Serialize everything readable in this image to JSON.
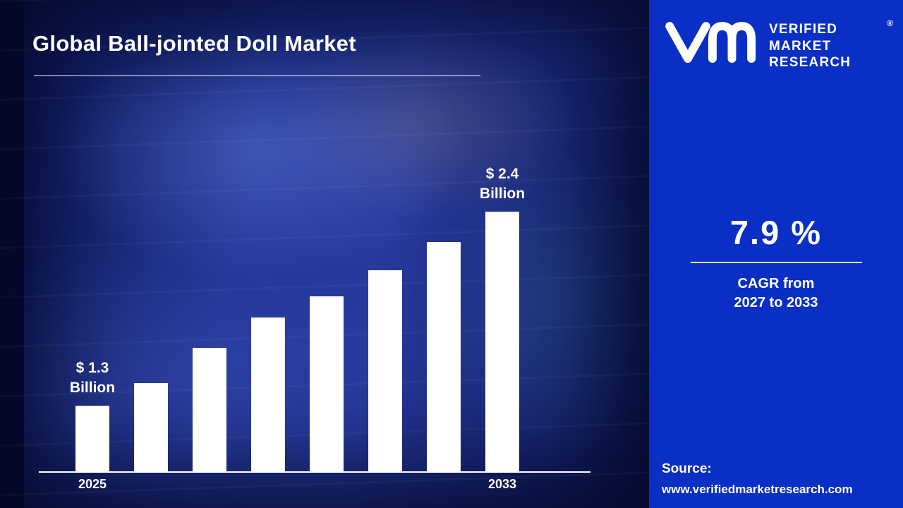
{
  "colors": {
    "panel_accent": "#0a2fc4",
    "background_navy": "#1b2a80",
    "bar_white": "#ffffff",
    "text_white": "#ffffff"
  },
  "header": {
    "title": "Global Ball-jointed Doll Market"
  },
  "chart_data": {
    "type": "bar",
    "title": "Global Ball-jointed Doll Market",
    "xlabel": "",
    "ylabel": "",
    "unit": "USD Billion",
    "categories": [
      "2025",
      "",
      "",
      "",
      "",
      "",
      "",
      "2033"
    ],
    "values": [
      1.3,
      1.43,
      1.63,
      1.8,
      1.92,
      2.07,
      2.23,
      2.4
    ],
    "annotations": [
      {
        "index": 0,
        "lines": [
          "$ 1.3",
          "Billion"
        ]
      },
      {
        "index": 7,
        "lines": [
          "$ 2.4",
          "Billion"
        ]
      }
    ],
    "ylim": [
      0.93,
      2.4
    ],
    "bar_color": "#ffffff",
    "axis_line_color": "#ffffff",
    "grid": false,
    "legend": "none"
  },
  "panel": {
    "brand": {
      "name_lines": [
        "VERIFIED",
        "MARKET",
        "RESEARCH"
      ],
      "registered_mark": "®",
      "logo_icon": "vmr-vm-monogram"
    },
    "cagr_value": "7.9 %",
    "cagr_caption": [
      "CAGR from",
      "2027 to 2033"
    ],
    "source_label": "Source:",
    "source_url": "www.verifiedmarketresearch.com"
  }
}
